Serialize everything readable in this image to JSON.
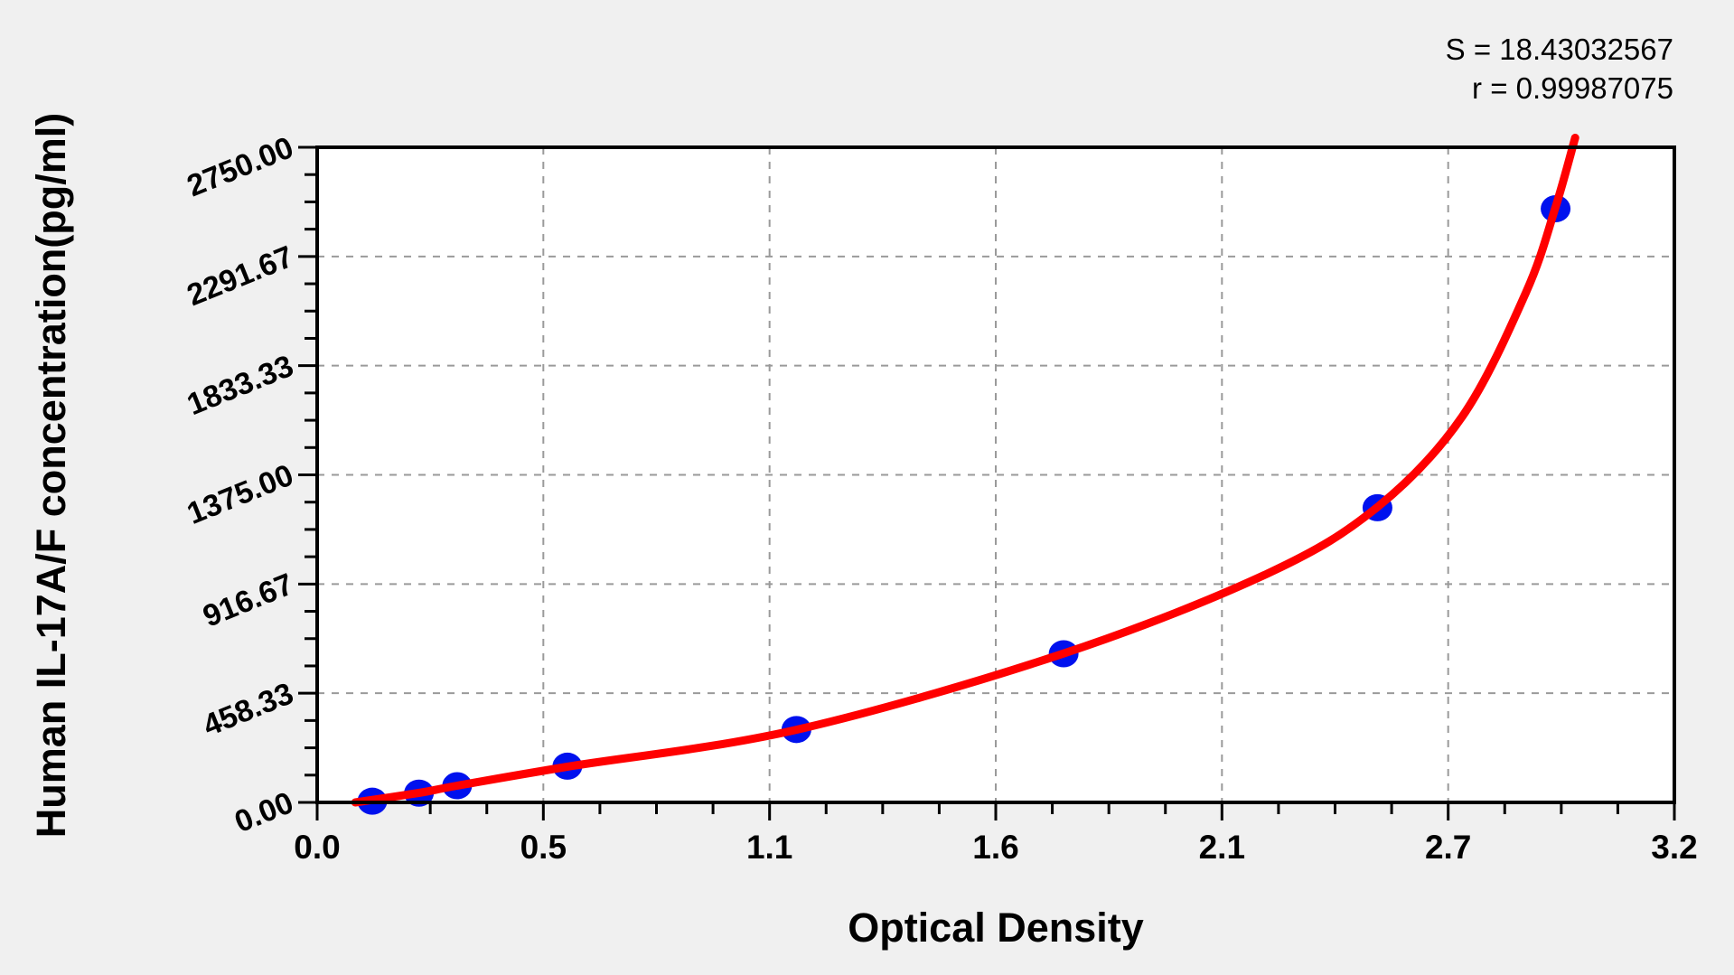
{
  "chart_data": {
    "type": "scatter",
    "title": "",
    "xlabel": "Optical Density",
    "ylabel": "Human IL-17A/F concentration(pg/ml)",
    "annotations": {
      "s": "S = 18.43032567",
      "r": "r = 0.99987075"
    },
    "xlim": [
      0,
      3.2
    ],
    "ylim": [
      0,
      2750
    ],
    "x_ticks": {
      "values": [
        0,
        0.5333,
        1.0667,
        1.6,
        2.1333,
        2.6667,
        3.2
      ],
      "labels": [
        "0.0",
        "0.5",
        "1.1",
        "1.6",
        "2.1",
        "2.7",
        "3.2"
      ]
    },
    "y_ticks": {
      "values": [
        0,
        458.33,
        916.67,
        1375,
        1833.33,
        2291.67,
        2750
      ],
      "labels": [
        "0.00",
        "458.33",
        "916.67",
        "1375.00",
        "1833.33",
        "2291.67",
        "2750.00"
      ]
    },
    "minor_divisions_per_major": 4,
    "grid": {
      "style": "dashed",
      "on_major_x": true,
      "on_major_y": true
    },
    "legend": "none",
    "points": [
      {
        "od": 0.13,
        "conc": 5
      },
      {
        "od": 0.24,
        "conc": 39
      },
      {
        "od": 0.33,
        "conc": 70
      },
      {
        "od": 0.59,
        "conc": 152
      },
      {
        "od": 1.13,
        "conc": 306
      },
      {
        "od": 1.76,
        "conc": 624
      },
      {
        "od": 2.5,
        "conc": 1237
      },
      {
        "od": 2.92,
        "conc": 2492
      }
    ],
    "curve": [
      [
        0.09,
        0
      ],
      [
        0.24,
        40
      ],
      [
        0.33,
        70
      ],
      [
        0.59,
        150
      ],
      [
        1.13,
        305
      ],
      [
        1.76,
        625
      ],
      [
        2.24,
        960
      ],
      [
        2.5,
        1240
      ],
      [
        2.7,
        1620
      ],
      [
        2.85,
        2140
      ],
      [
        2.92,
        2500
      ],
      [
        2.966,
        2790
      ]
    ],
    "colors": {
      "curve": "#ff0000",
      "marker": "#0011ee",
      "grid": "#9a9a9a",
      "axis": "#000000",
      "background": "#f0f0f0",
      "plot_background": "#ffffff",
      "text": "#000000"
    }
  }
}
